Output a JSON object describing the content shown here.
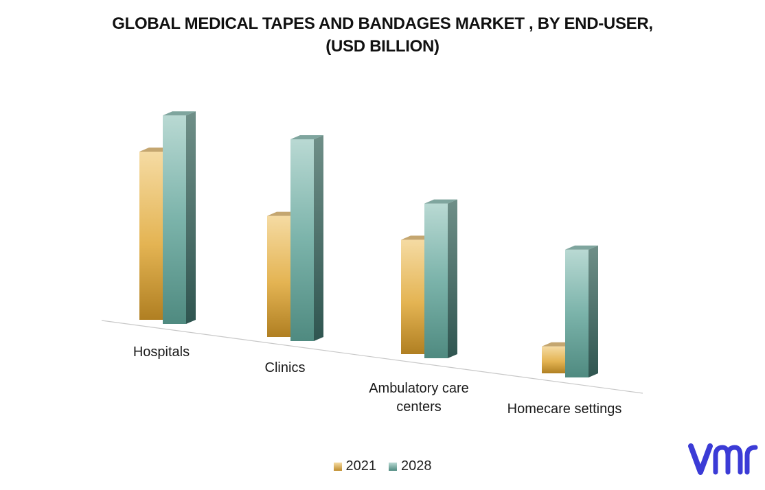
{
  "title": {
    "line1": "GLOBAL MEDICAL TAPES AND BANDAGES MARKET , BY END-USER,",
    "line2": "(USD BILLION)"
  },
  "chart_data": {
    "type": "bar",
    "title": "GLOBAL MEDICAL TAPES AND BANDAGES MARKET , BY END-USER, (USD BILLION)",
    "categories": [
      "Hospitals",
      "Clinics",
      "Ambulatory care centers",
      "Homecare settings"
    ],
    "category_lines": [
      [
        "Hospitals"
      ],
      [
        "Clinics"
      ],
      [
        "Ambulatory care",
        "centers"
      ],
      [
        "Homecare settings"
      ]
    ],
    "series": [
      {
        "name": "2021",
        "values": [
          2.5,
          1.8,
          1.7,
          0.4
        ],
        "color": "#e8b44a"
      },
      {
        "name": "2028",
        "values": [
          3.1,
          3.0,
          2.3,
          1.9
        ],
        "color": "#6fb3a6"
      }
    ],
    "ylim": [
      0,
      3.2
    ],
    "grid": false,
    "legend_position": "bottom",
    "style": "3d-perspective"
  },
  "legend": {
    "items": [
      "2021",
      "2028"
    ]
  },
  "logo": {
    "name": "vmr-logo",
    "color": "#3b3bd6"
  }
}
